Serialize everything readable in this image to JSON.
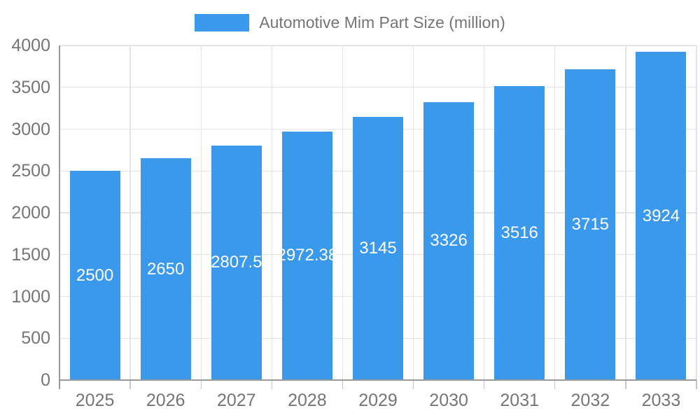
{
  "legend": {
    "label": "Automotive Mim Part Size (million)",
    "position": "top"
  },
  "chart_data": {
    "type": "bar",
    "title": "Automotive Mim Part Size (million)",
    "categories": [
      "2025",
      "2026",
      "2027",
      "2028",
      "2029",
      "2030",
      "2031",
      "2032",
      "2033"
    ],
    "values": [
      2500,
      2650,
      2807.5,
      2972.38,
      3145,
      3326,
      3516,
      3715,
      3924
    ],
    "value_labels": [
      "2500",
      "2650",
      "2807.5",
      "2972.38",
      "3145",
      "3326",
      "3516",
      "3715",
      "3924"
    ],
    "xlabel": "",
    "ylabel": "",
    "ylim": [
      0,
      4000
    ],
    "y_ticks": [
      0,
      500,
      1000,
      1500,
      2000,
      2500,
      3000,
      3500,
      4000
    ],
    "grid": "on",
    "legend_position": "top",
    "colors": {
      "bar": "#3b99ec",
      "bar_label": "#ffffff",
      "grid": "#e4e4e4",
      "axis_line": "#9a9a9a",
      "tick": "#c6c6c6",
      "text": "#757575",
      "background": "#ffffff"
    }
  }
}
